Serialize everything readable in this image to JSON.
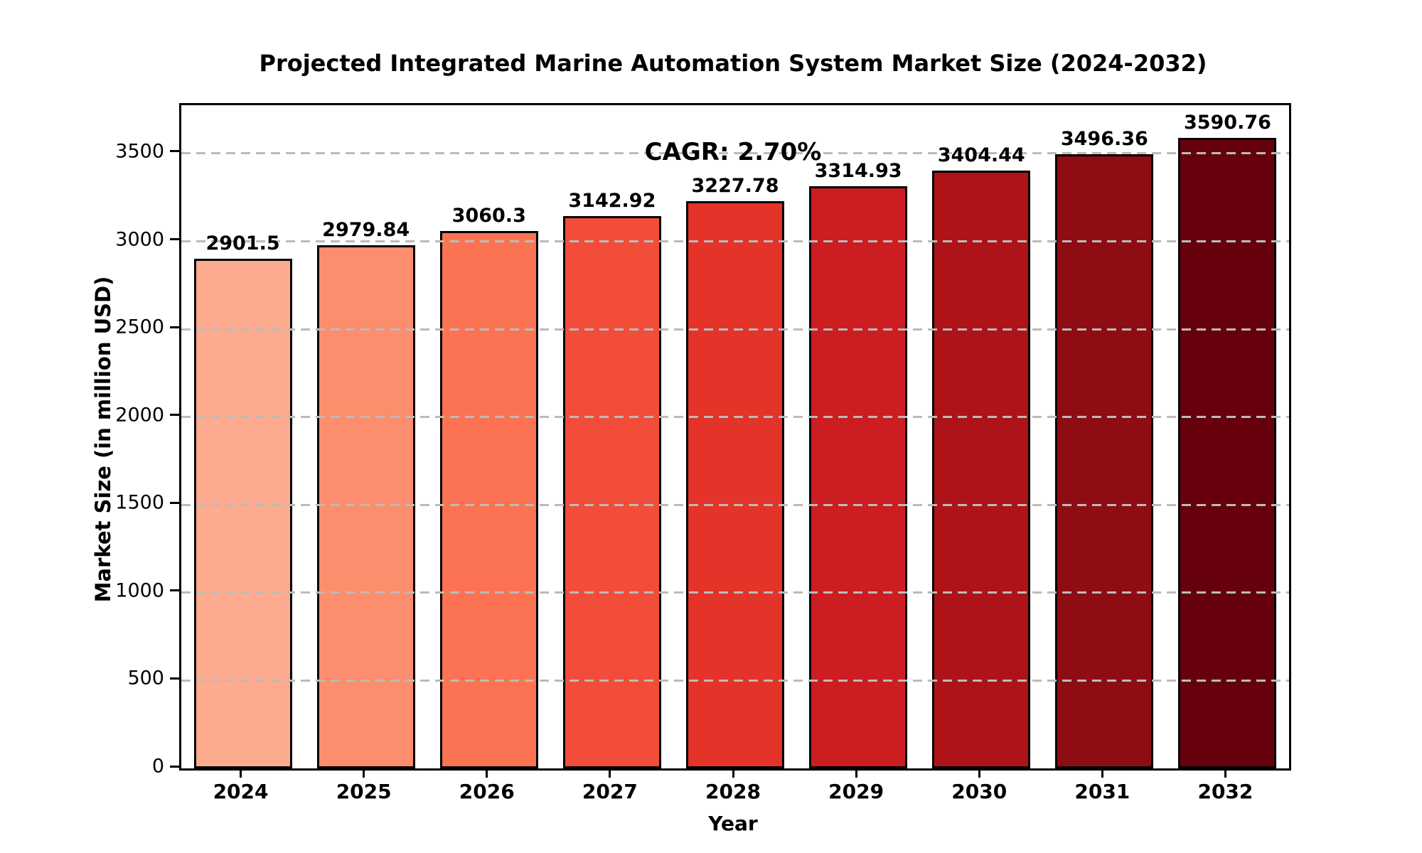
{
  "chart_data": {
    "type": "bar",
    "title": "Projected Integrated Marine Automation System Market Size (2024-2032)",
    "xlabel": "Year",
    "ylabel": "Market Size (in million USD)",
    "annotation": "CAGR: 2.70%",
    "categories": [
      "2024",
      "2025",
      "2026",
      "2027",
      "2028",
      "2029",
      "2030",
      "2031",
      "2032"
    ],
    "values": [
      2901.5,
      2979.84,
      3060.3,
      3142.92,
      3227.78,
      3314.93,
      3404.44,
      3496.36,
      3590.76
    ],
    "value_labels": [
      "2901.5",
      "2979.84",
      "3060.3",
      "3142.92",
      "3227.78",
      "3314.93",
      "3404.44",
      "3496.36",
      "3590.76"
    ],
    "bar_colors": [
      "#fcab8e",
      "#fc8d6d",
      "#fb7353",
      "#f14d38",
      "#e43328",
      "#cb1d22",
      "#ae1318",
      "#8e0d12",
      "#67000d"
    ],
    "bar_edge_color": "#000000",
    "ylim": [
      0,
      3775
    ],
    "yticks": [
      0,
      500,
      1000,
      1500,
      2000,
      2500,
      3000,
      3500
    ],
    "grid": {
      "axis": "y",
      "style": "dashed",
      "color": "#bbbbbb",
      "drawn_above_bars": true
    },
    "legend": null,
    "background": "#ffffff"
  }
}
